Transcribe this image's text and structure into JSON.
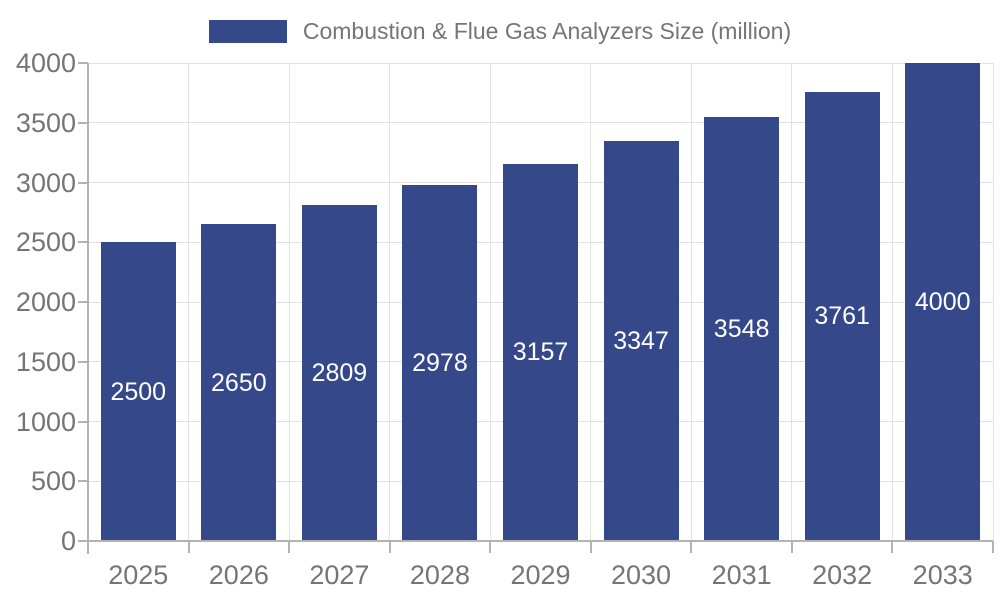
{
  "legend": {
    "label": "Combustion & Flue Gas Analyzers Size (million)"
  },
  "chart_data": {
    "type": "bar",
    "title": "Combustion & Flue Gas Analyzers Size (million)",
    "categories": [
      "2025",
      "2026",
      "2027",
      "2028",
      "2029",
      "2030",
      "2031",
      "2032",
      "2033"
    ],
    "values": [
      2500,
      2650,
      2809,
      2978,
      3157,
      3347,
      3548,
      3761,
      4000
    ],
    "value_labels": [
      "2500",
      "2650",
      "2809",
      "2978",
      "3157",
      "3347",
      "3548",
      "3761",
      "4000"
    ],
    "xlabel": "",
    "ylabel": "",
    "ylim": [
      0,
      4000
    ],
    "yticks": [
      0,
      500,
      1000,
      1500,
      2000,
      2500,
      3000,
      3500,
      4000
    ],
    "grid": true,
    "legend_position": "top-center",
    "colors": {
      "bar": "#35488a",
      "grid": "#e2e2e2",
      "axis": "#b3b3b3",
      "tick_label": "#757575",
      "legend_text": "#757575",
      "value_label": "#ffffff",
      "background": "#ffffff"
    }
  }
}
